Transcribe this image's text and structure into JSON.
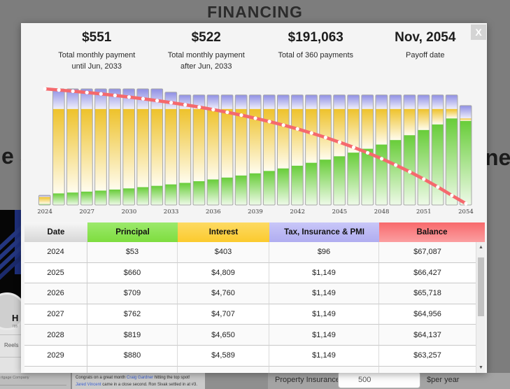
{
  "backdrop": {
    "page_title": "FINANCING",
    "heading_fragment_left": "e S",
    "heading_fragment_right": "nee",
    "profile": {
      "name": "H",
      "followers": "785",
      "tab": "Reels",
      "category": "rtgage Company"
    },
    "post": {
      "part1": "Congrats on a great month ",
      "link1": "Craig Gardner",
      "part2": " hitting the top spot! ",
      "link2": "Jared Vincent",
      "part3": " came in a close second.  Ron Sivak settled in at #3. Then to"
    },
    "form": {
      "label": "Property Insurance:",
      "value": "500",
      "unit": "$per year"
    }
  },
  "modal": {
    "close_label": "X",
    "stats": [
      {
        "value": "$551",
        "line1": "Total monthly payment",
        "line2": "until Jun, 2033"
      },
      {
        "value": "$522",
        "line1": "Total monthly payment",
        "line2": "after Jun, 2033"
      },
      {
        "value": "$191,063",
        "line1": "Total of 360 payments",
        "line2": ""
      },
      {
        "value": "Nov, 2054",
        "line1": "Payoff date",
        "line2": ""
      }
    ]
  },
  "colors": {
    "principal_top": "#68cd39",
    "principal_bottom": "#eefae8",
    "interest_top": "#eec22b",
    "interest_bottom": "#fffcee",
    "tax_top": "#8f8fe4",
    "tax_bottom": "#eeeefb",
    "balance_line": "#f5696d",
    "bar_outline": "#a8a8a8"
  },
  "chart_data": {
    "type": "bar",
    "subtype": "stacked-bars-with-balance-line",
    "x": [
      2024,
      2025,
      2026,
      2027,
      2028,
      2029,
      2030,
      2031,
      2032,
      2033,
      2034,
      2035,
      2036,
      2037,
      2038,
      2039,
      2040,
      2041,
      2042,
      2043,
      2044,
      2045,
      2046,
      2047,
      2048,
      2049,
      2050,
      2051,
      2052,
      2053,
      2054
    ],
    "x_ticks": [
      2024,
      2027,
      2030,
      2033,
      2036,
      2039,
      2042,
      2045,
      2048,
      2051,
      2054
    ],
    "series": [
      {
        "name": "Principal",
        "values": [
          53,
          660,
          709,
          762,
          819,
          880,
          945,
          1016,
          1091,
          1173,
          1260,
          1354,
          1455,
          1563,
          1679,
          1804,
          1939,
          2083,
          2238,
          2405,
          2584,
          2776,
          2983,
          3205,
          3444,
          3700,
          3976,
          4272,
          4590,
          4932,
          4790
        ]
      },
      {
        "name": "Interest",
        "values": [
          403,
          4809,
          4760,
          4707,
          4650,
          4589,
          4524,
          4453,
          4378,
          4296,
          4209,
          4115,
          4014,
          3906,
          3790,
          3665,
          3530,
          3386,
          3231,
          3064,
          2885,
          2693,
          2486,
          2264,
          2025,
          1769,
          1493,
          1197,
          879,
          537,
          140
        ]
      },
      {
        "name": "Tax, Insurance & PMI",
        "values": [
          96,
          1149,
          1149,
          1149,
          1149,
          1149,
          1149,
          1149,
          1149,
          961,
          801,
          801,
          801,
          801,
          801,
          801,
          801,
          801,
          801,
          801,
          801,
          801,
          801,
          801,
          801,
          801,
          801,
          801,
          801,
          801,
          734
        ]
      }
    ],
    "line_series": {
      "name": "Balance",
      "values": [
        67087,
        66427,
        65718,
        64956,
        64137,
        63257,
        62312,
        61296,
        60205,
        59032,
        57772,
        56418,
        54963,
        53400,
        51721,
        49917,
        47978,
        45895,
        43657,
        41252,
        38668,
        35892,
        32909,
        29704,
        26260,
        22560,
        18584,
        14312,
        9722,
        4790,
        0
      ]
    },
    "bar_value_max": 6618,
    "line_value_max": 67087
  },
  "table": {
    "columns": [
      "Date",
      "Principal",
      "Interest",
      "Tax, Insurance & PMI",
      "Balance"
    ],
    "header_gradients": [
      [
        "#f6f6f6",
        "#d6d6d6"
      ],
      [
        "#9ce96c",
        "#7edd3f"
      ],
      [
        "#fdda63",
        "#fbca2e"
      ],
      [
        "#c8c6f8",
        "#b0adf0"
      ],
      [
        "#f8696c",
        "#fb9fa1"
      ]
    ],
    "rows": [
      [
        "2024",
        "$53",
        "$403",
        "$96",
        "$67,087"
      ],
      [
        "2025",
        "$660",
        "$4,809",
        "$1,149",
        "$66,427"
      ],
      [
        "2026",
        "$709",
        "$4,760",
        "$1,149",
        "$65,718"
      ],
      [
        "2027",
        "$762",
        "$4,707",
        "$1,149",
        "$64,956"
      ],
      [
        "2028",
        "$819",
        "$4,650",
        "$1,149",
        "$64,137"
      ],
      [
        "2029",
        "$880",
        "$4,589",
        "$1,149",
        "$63,257"
      ],
      [
        "2030",
        "$945",
        "$4,524",
        "$1,149",
        "$62,312"
      ]
    ]
  }
}
